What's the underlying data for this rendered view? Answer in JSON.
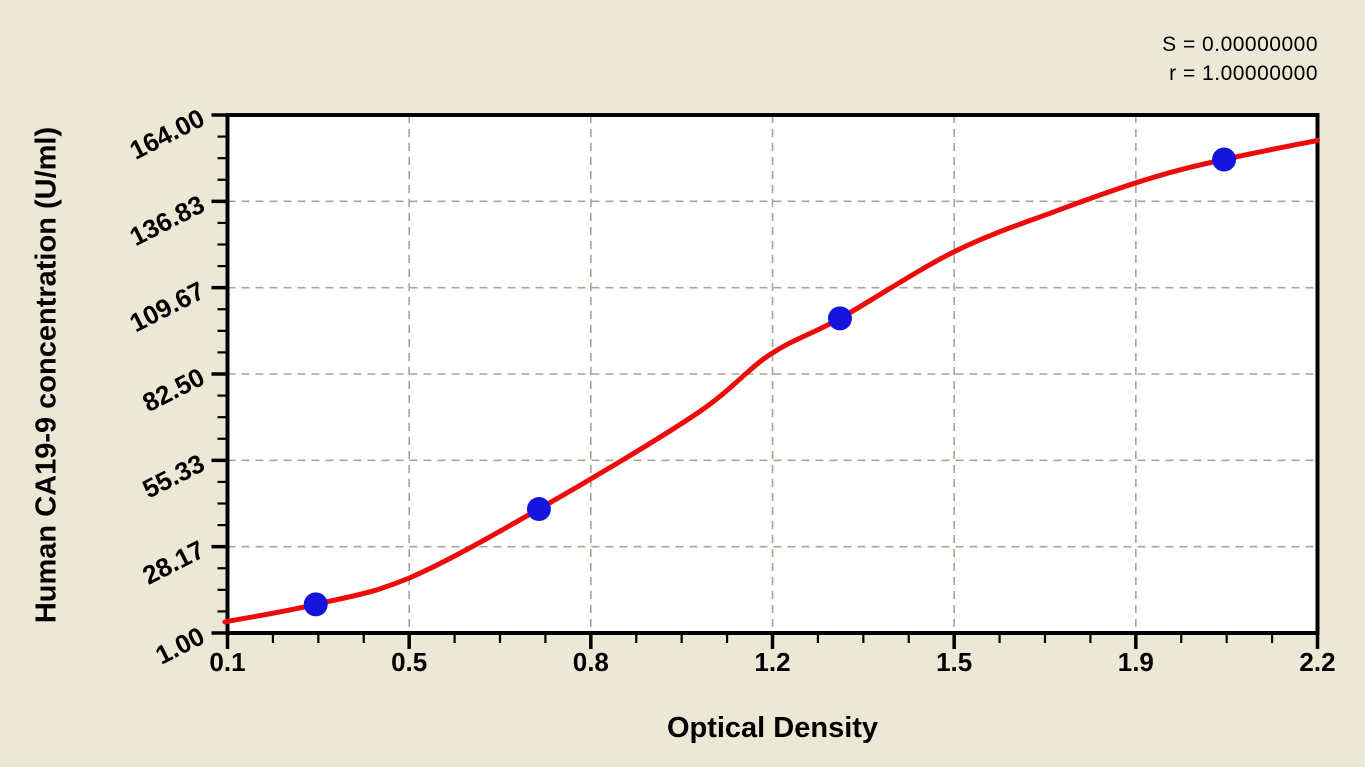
{
  "page": {
    "background": "#ebe8d6"
  },
  "stats": {
    "s_line": "S = 0.00000000",
    "r_line": "r = 1.00000000"
  },
  "chart_data": {
    "type": "scatter",
    "subtype": "elisa-standard-curve",
    "title": "",
    "xlabel": "Optical Density",
    "ylabel": "Human CA19-9 concentration (U/ml)",
    "x_axis": {
      "min": 0.1,
      "max": 2.2,
      "tick_values": [
        0.1,
        0.45,
        0.8,
        1.15,
        1.5,
        1.85,
        2.2
      ],
      "tick_labels": [
        "0.1",
        "0.5",
        "0.8",
        "1.2",
        "1.5",
        "1.9",
        "2.2"
      ],
      "minor_divisions": 4
    },
    "y_axis": {
      "min": 1,
      "max": 164,
      "tick_values": [
        1,
        28.17,
        55.33,
        82.5,
        109.67,
        136.83,
        164
      ],
      "tick_labels": [
        "1.00",
        "28.17",
        "55.33",
        "82.50",
        "109.67",
        "136.83",
        "164.00"
      ],
      "minor_divisions": 4
    },
    "grid": {
      "style": "dashed",
      "majors_only": true,
      "inner_only": true
    },
    "legend": "none",
    "standards": [
      {
        "od": 0.27,
        "conc": 10
      },
      {
        "od": 0.7,
        "conc": 40
      },
      {
        "od": 1.28,
        "conc": 100
      },
      {
        "od": 2.02,
        "conc": 150
      }
    ],
    "fit_curve_samples": [
      [
        0.095,
        4.5
      ],
      [
        0.27,
        10
      ],
      [
        0.45,
        18.3
      ],
      [
        0.7,
        40
      ],
      [
        1.0,
        69.6
      ],
      [
        1.144,
        88.5
      ],
      [
        1.28,
        100
      ],
      [
        1.5,
        121
      ],
      [
        1.7,
        134
      ],
      [
        1.876,
        144
      ],
      [
        2.02,
        150
      ],
      [
        2.2,
        156
      ]
    ],
    "stats": {
      "S": "0.00000000",
      "r": "1.00000000"
    },
    "colors": {
      "curve": "#ee0a0a",
      "marker": "#1414dd",
      "grid": "#a8a695",
      "frame": "#000000",
      "plot_bg": "#ffffff",
      "page_bg": "#ebe8d6",
      "text": "#000000"
    }
  }
}
